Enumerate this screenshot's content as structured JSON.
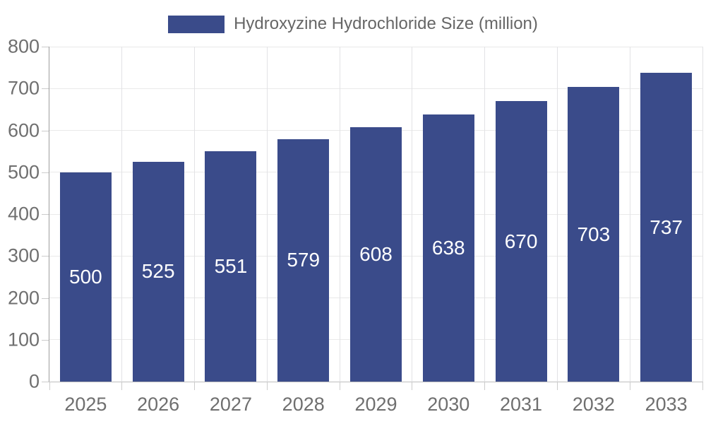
{
  "chart_data": {
    "type": "bar",
    "title": "",
    "series_name": "Hydroxyzine Hydrochloride Size (million)",
    "categories": [
      "2025",
      "2026",
      "2027",
      "2028",
      "2029",
      "2030",
      "2031",
      "2032",
      "2033"
    ],
    "values": [
      500,
      525,
      551,
      579,
      608,
      638,
      670,
      703,
      737
    ],
    "xlabel": "",
    "ylabel": "",
    "ylim": [
      0,
      800
    ],
    "ytick_step": 100,
    "grid": true,
    "legend_position": "top",
    "value_label_position": "inside-center"
  },
  "colors": {
    "bar": "#3a4b8a",
    "bar_label": "#ffffff",
    "legend_text": "#666666",
    "tick_label": "#6f6f6f",
    "hgrid_line": "#e9e9e9",
    "vgrid_line": "#e2e2e5",
    "y_axis_line": "#9e9e9e",
    "x_axis_line": "#bdbdbd",
    "tick_mark": "#cccccc",
    "background": "#ffffff"
  }
}
